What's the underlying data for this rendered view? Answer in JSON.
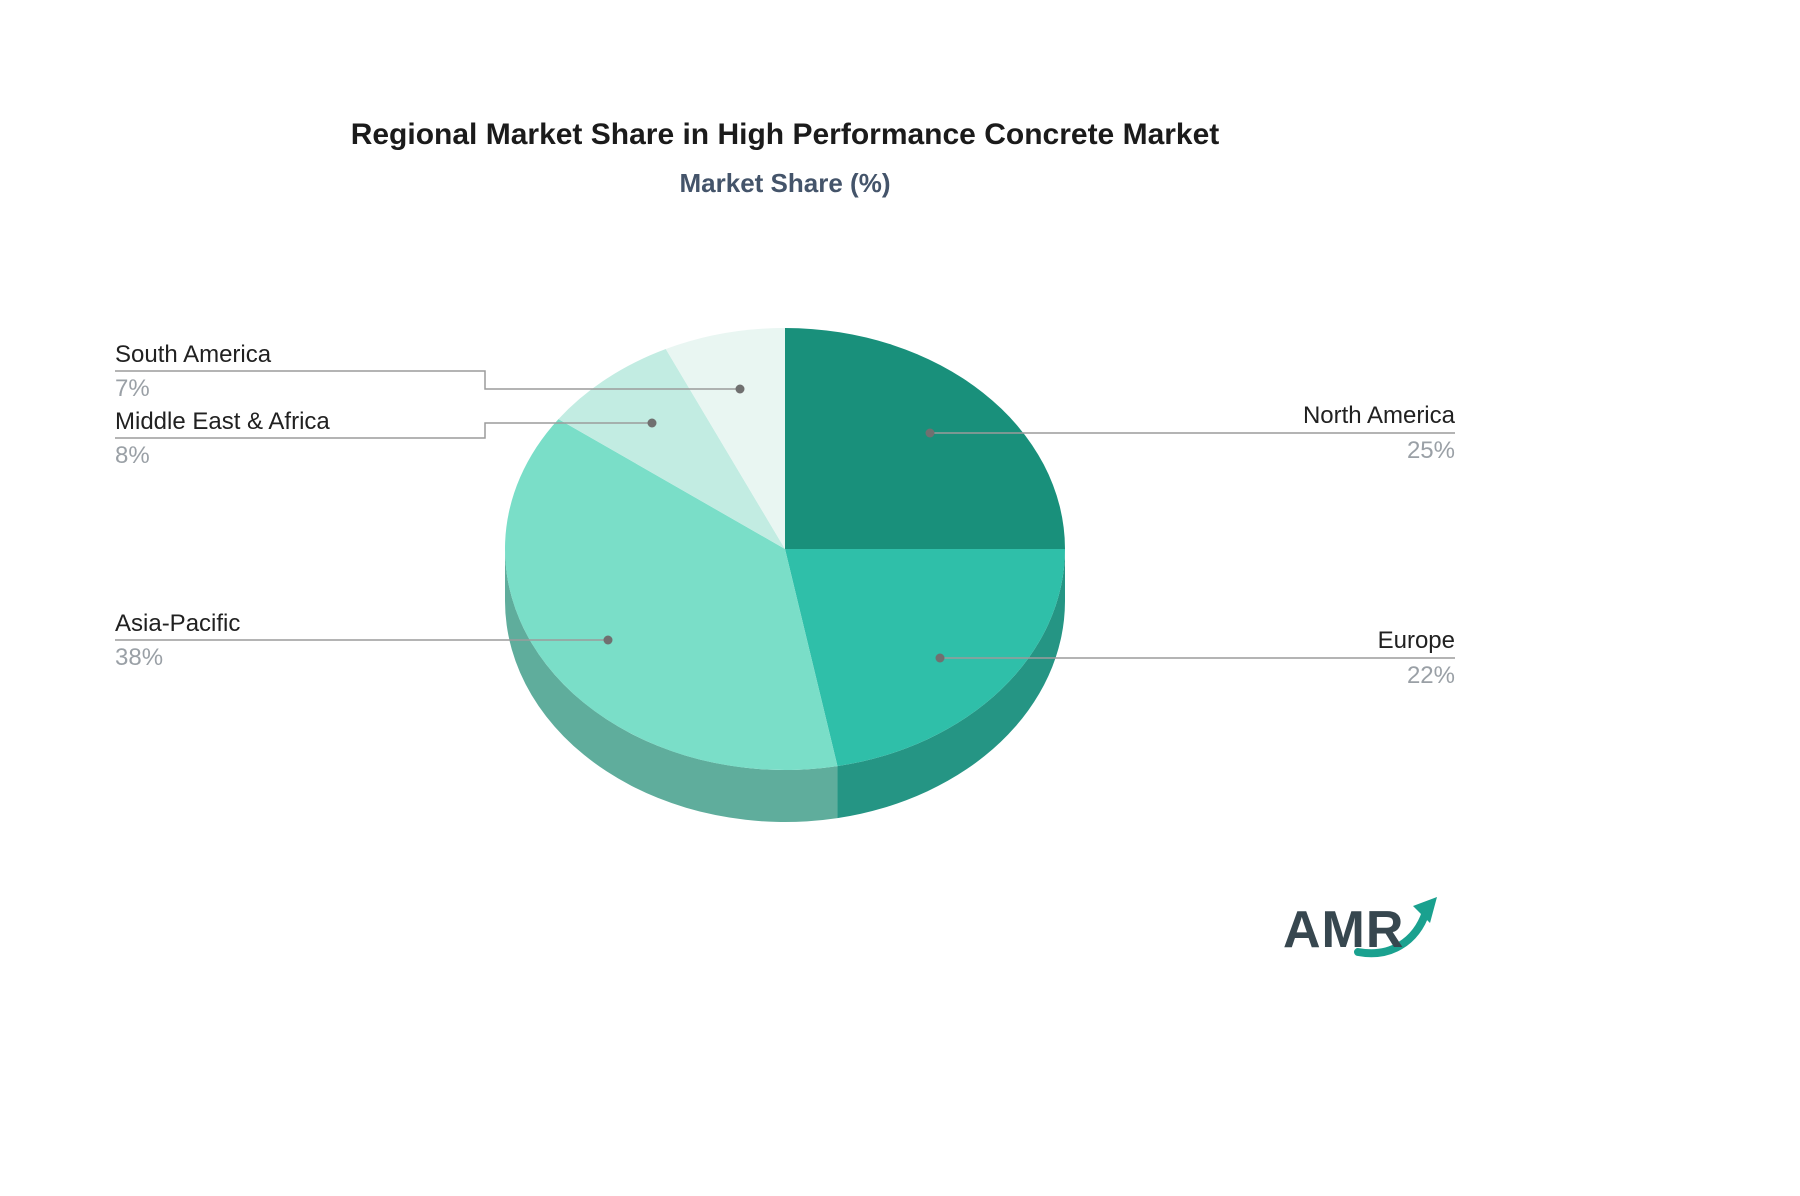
{
  "header": {
    "title": "Regional Market Share in High Performance Concrete Market",
    "subtitle": "Market Share (%)"
  },
  "logo": {
    "text": "AMR",
    "text_color": "#37474f",
    "arrow_color": "#1aa18f"
  },
  "chart_data": {
    "type": "pie",
    "style": "3d",
    "title": "Regional Market Share in High Performance Concrete Market",
    "subtitle": "Market Share (%)",
    "unit": "%",
    "start_angle_deg": 0,
    "direction": "clockwise",
    "legend": false,
    "leader_line_color": "#9b9b9b",
    "leader_dot_color": "#707070",
    "slices": [
      {
        "label": "North America",
        "value": 25,
        "display": "25%",
        "color": "#19907b"
      },
      {
        "label": "Europe",
        "value": 22,
        "display": "22%",
        "color": "#2fbfa9"
      },
      {
        "label": "Asia-Pacific",
        "value": 38,
        "display": "38%",
        "color": "#7adec8"
      },
      {
        "label": "Middle East & Africa",
        "value": 8,
        "display": "8%",
        "color": "#c2ece2"
      },
      {
        "label": "South America",
        "value": 7,
        "display": "7%",
        "color": "#e9f6f2"
      }
    ]
  }
}
